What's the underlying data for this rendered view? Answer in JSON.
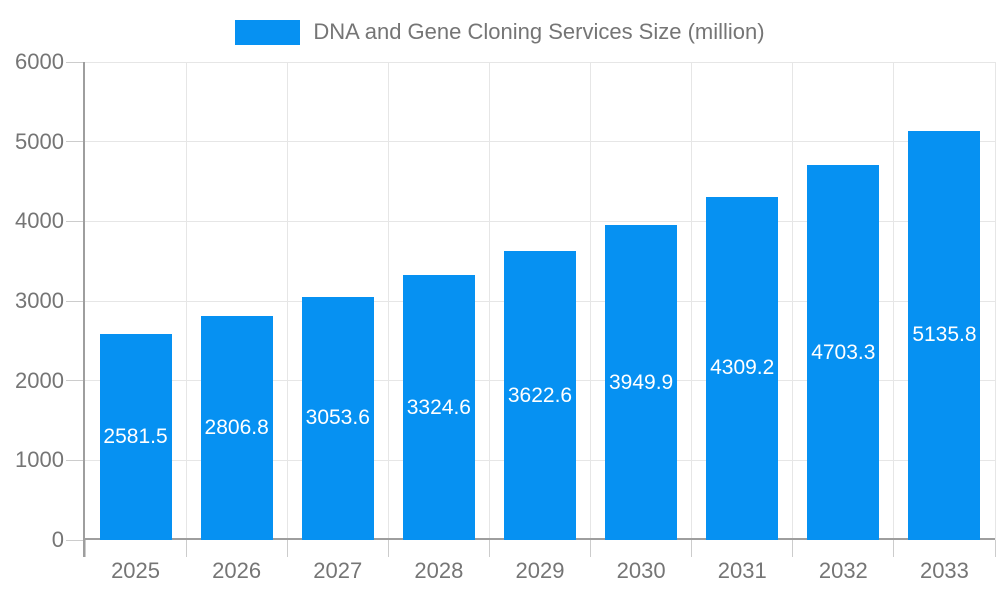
{
  "chart_data": {
    "type": "bar",
    "title": "DNA and Gene Cloning Services Size (million)",
    "legend_entries": [
      "DNA and Gene Cloning Services Size (million)"
    ],
    "legend_position": "top-center",
    "categories": [
      "2025",
      "2026",
      "2027",
      "2028",
      "2029",
      "2030",
      "2031",
      "2032",
      "2033"
    ],
    "values": [
      2581.5,
      2806.8,
      3053.6,
      3324.6,
      3622.6,
      3949.9,
      4309.2,
      4703.3,
      5135.8
    ],
    "xlabel": "",
    "ylabel": "",
    "ylim": [
      0,
      6000
    ],
    "yticks": [
      0,
      1000,
      2000,
      3000,
      4000,
      5000,
      6000
    ],
    "grid": true,
    "bar_labels_visible": true,
    "colors": {
      "bar": "#0691f2",
      "bar_label": "#ffffff",
      "grid": "#e6e6e6",
      "axis": "#9e9e9e",
      "tick": "#cccccc",
      "text": "#757575",
      "background": "#ffffff"
    }
  }
}
